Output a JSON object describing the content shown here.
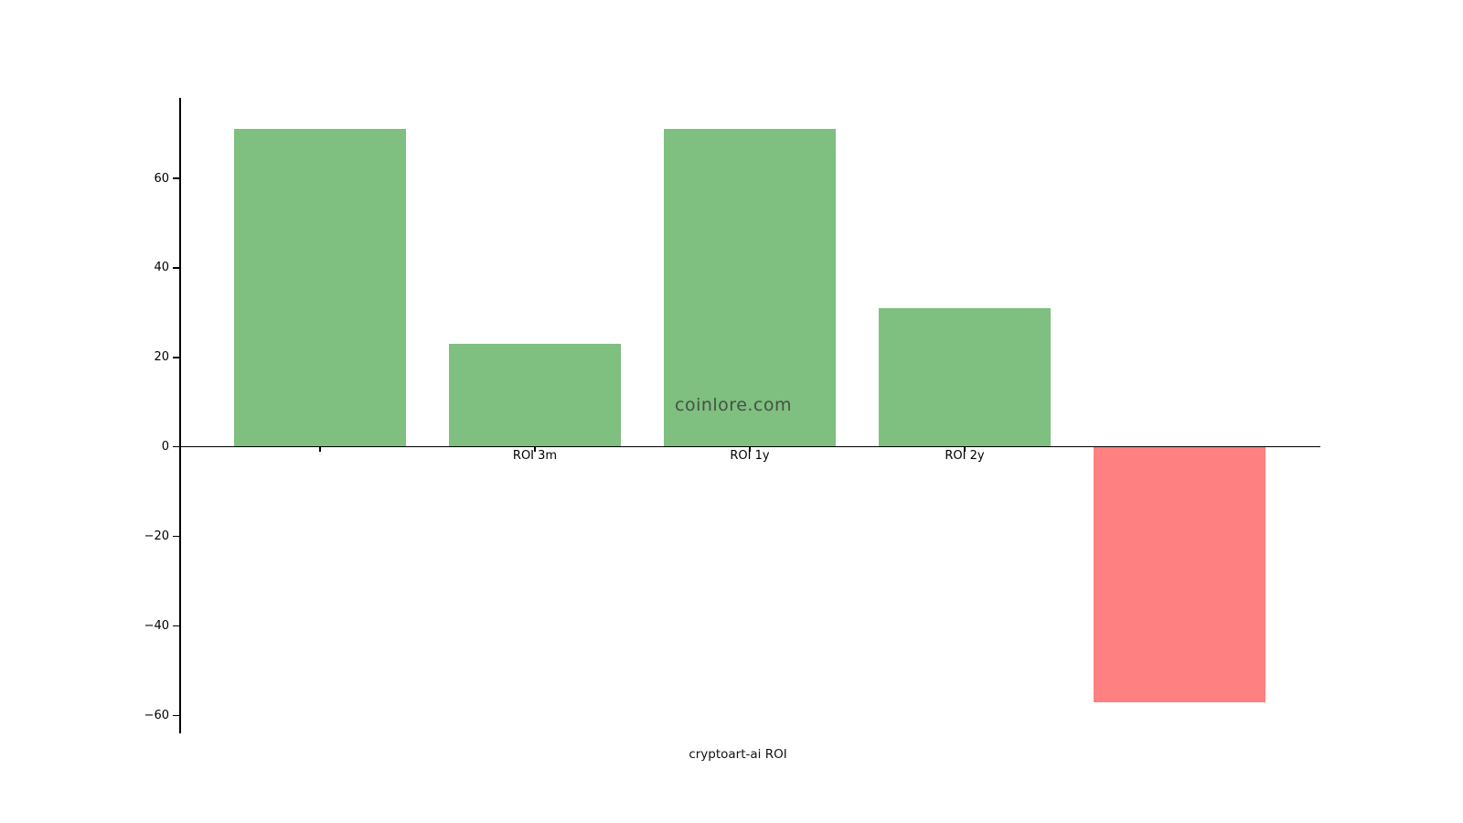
{
  "page": {
    "background": "#ffffff"
  },
  "watermark": {
    "text": "coinlore.com",
    "color": "#3c3c3c"
  },
  "chart_data": {
    "type": "bar",
    "title": "cryptoart-ai ROI",
    "categories": [
      "",
      "ROI 3m",
      "ROI 1y",
      "ROI 2y",
      ""
    ],
    "values": [
      71,
      23,
      71,
      31,
      -57
    ],
    "positive_color": "#7fbf7f",
    "negative_color": "#ff8080",
    "axis_color": "#000000",
    "yticks": [
      60,
      40,
      20,
      0,
      -20,
      -40,
      -60
    ],
    "ytick_labels": [
      "60",
      "40",
      "20",
      "0",
      "−20",
      "−40",
      "−60"
    ],
    "ylim": [
      -64,
      78
    ],
    "xlabel": "",
    "ylabel": "",
    "grid": false,
    "legend": null,
    "baseline": 0
  }
}
